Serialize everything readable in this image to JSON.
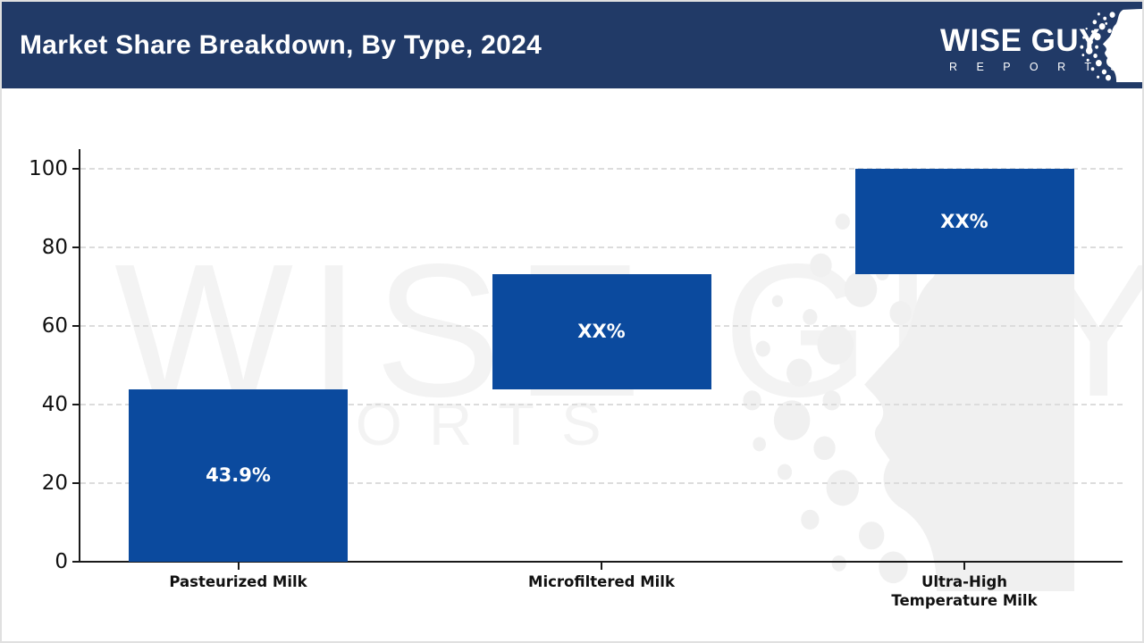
{
  "header": {
    "title": "Market Share Breakdown, By Type, 2024",
    "logo": {
      "line1": "WISE GUY",
      "line2": "R E P O R T S"
    }
  },
  "watermark": {
    "line1": "WISE GUY",
    "line2": "REPORTS"
  },
  "chart_data": {
    "type": "bar",
    "subtype": "stacked-waterfall-breakdown",
    "title": "Market Share Breakdown, By Type, 2024",
    "categories": [
      "Pasteurized Milk",
      "Microfiltered Milk",
      "Ultra-High Temperature Milk"
    ],
    "segments": [
      {
        "category": "Pasteurized Milk",
        "start": 0,
        "end": 43.9,
        "label": "43.9%"
      },
      {
        "category": "Microfiltered Milk",
        "start": 43.9,
        "end": 73.2,
        "label": "XX%"
      },
      {
        "category": "Ultra-High Temperature Milk",
        "start": 73.2,
        "end": 100,
        "label": "XX%"
      }
    ],
    "ylim": [
      0,
      100
    ],
    "yticks": [
      0,
      20,
      40,
      60,
      80,
      100
    ],
    "grid": "horizontal-dashed",
    "legend": "none"
  },
  "colors": {
    "header_bg": "#213a67",
    "bar": "#0b4a9e",
    "bar_label": "#ffffff",
    "grid": "#dcdcdc",
    "axis": "#1a1a1a",
    "watermark": "#f3f3f3"
  }
}
